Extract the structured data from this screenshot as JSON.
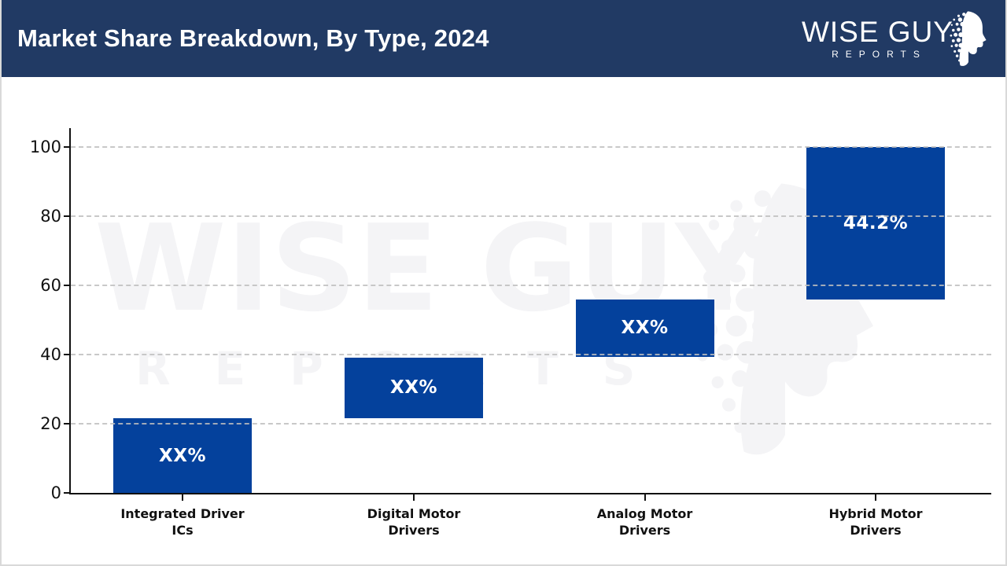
{
  "header": {
    "title": "Market Share Breakdown, By Type, 2024",
    "logo": {
      "name_line": "WISE GUY",
      "reports_line": "REPORTS"
    }
  },
  "watermark": {
    "name_line": "WISE GUY",
    "reports_line": "REPORTS"
  },
  "chart_data": {
    "type": "bar",
    "subtype": "floating-waterfall",
    "title": "Market Share Breakdown, By Type, 2024",
    "categories": [
      "Integrated Driver\nICs",
      "Digital Motor\nDrivers",
      "Analog Motor\nDrivers",
      "Hybrid Motor\nDrivers"
    ],
    "segments": [
      {
        "category": "Integrated Driver ICs",
        "start": 0,
        "end": 21.5,
        "label": "XX%"
      },
      {
        "category": "Digital Motor Drivers",
        "start": 21.6,
        "end": 39.1,
        "label": "XX%"
      },
      {
        "category": "Analog Motor Drivers",
        "start": 39.4,
        "end": 55.9,
        "label": "XX%"
      },
      {
        "category": "Hybrid Motor Drivers",
        "start": 55.8,
        "end": 100,
        "label": "44.2%"
      }
    ],
    "xlabel": "",
    "ylabel": "",
    "yticks": [
      0,
      20,
      40,
      60,
      80,
      100
    ],
    "ylim": [
      0,
      105
    ],
    "grid": "horizontal-dashed",
    "legend": "none",
    "bar_color": "#04419c",
    "bar_label_color": "#ffffff"
  },
  "colors": {
    "header_bg": "#213a64",
    "bar_blue": "#04419c",
    "grid_gray": "#d9d9d9",
    "axis_black": "#111111",
    "watermark_gray": "#f4f4f6",
    "page_border": "#d9d9d9"
  }
}
